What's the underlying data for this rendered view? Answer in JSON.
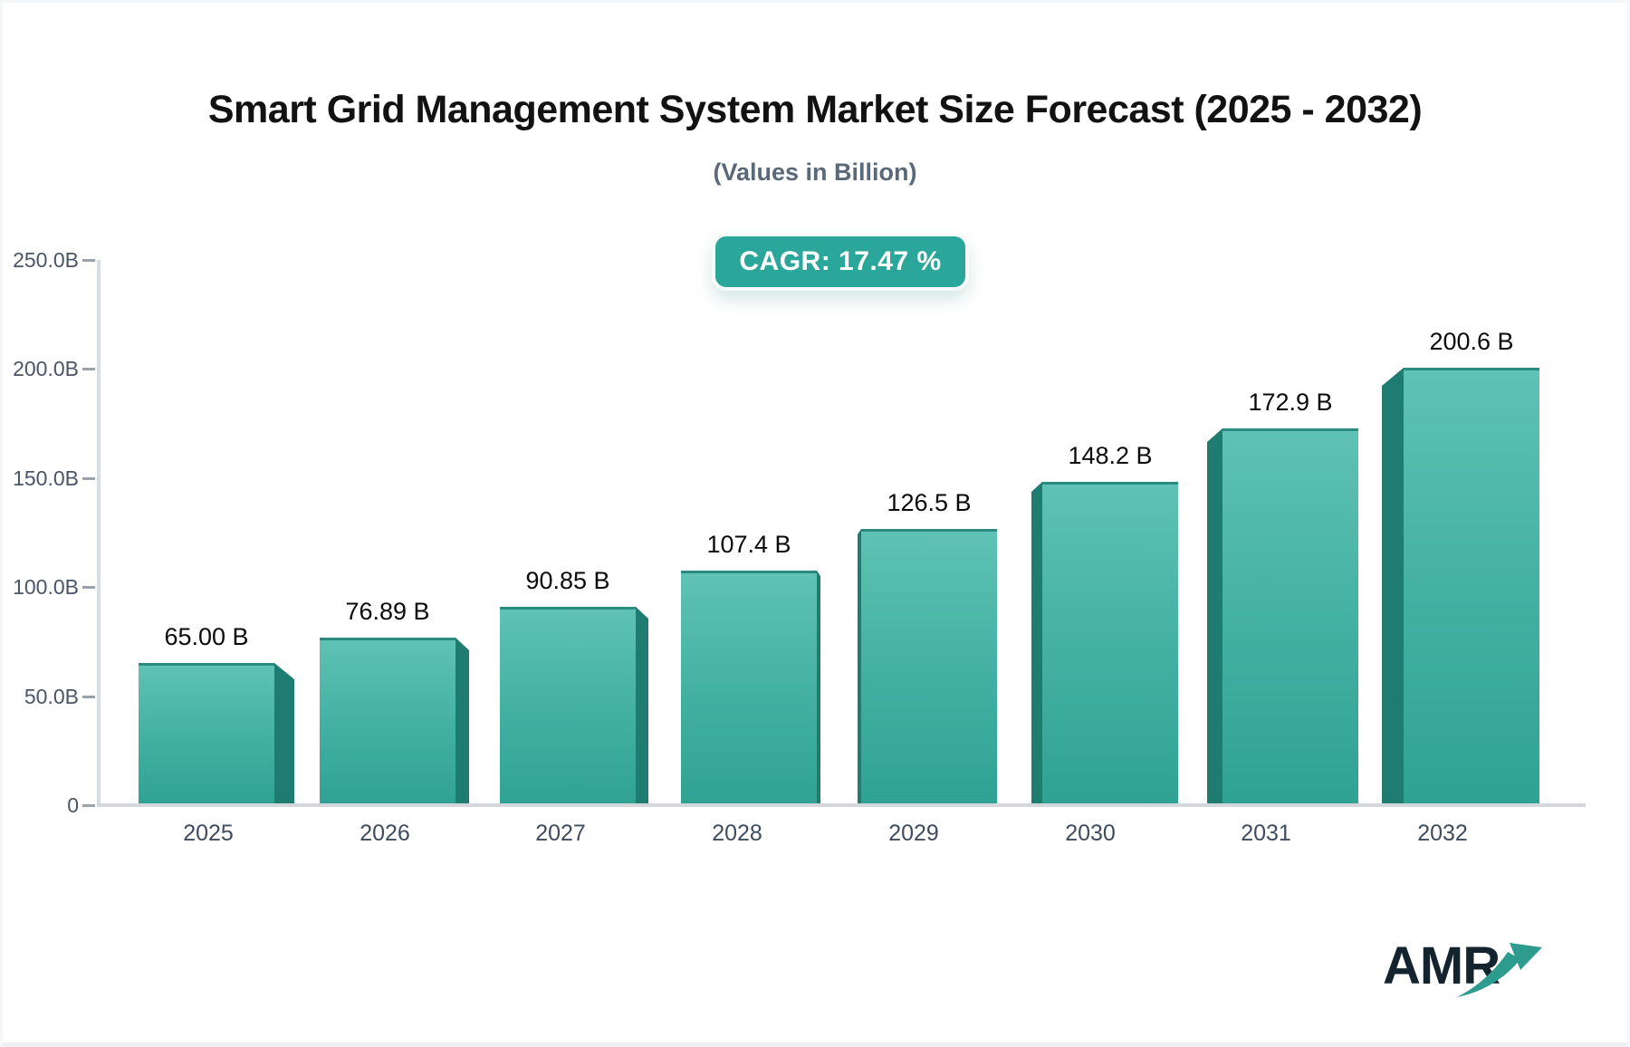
{
  "header": {
    "title": "Smart Grid Management System Market Size Forecast (2025 - 2032)",
    "subtitle": "(Values in Billion)",
    "cagr_label": "CAGR: 17.47 %"
  },
  "chart_data": {
    "type": "bar",
    "title": "Smart Grid Management System Market Size Forecast (2025 - 2032)",
    "subtitle": "(Values in Billion)",
    "cagr_percent": 17.47,
    "categories": [
      "2025",
      "2026",
      "2027",
      "2028",
      "2029",
      "2030",
      "2031",
      "2032"
    ],
    "values": [
      65.0,
      76.89,
      90.85,
      107.4,
      126.5,
      148.2,
      172.9,
      200.6
    ],
    "value_labels": [
      "65.00 B",
      "76.89 B",
      "90.85 B",
      "107.4 B",
      "126.5 B",
      "148.2 B",
      "172.9 B",
      "200.6 B"
    ],
    "y_tick_labels": [
      "250.0B",
      "200.0B",
      "150.0B",
      "100.0B",
      "50.0B",
      "0"
    ],
    "y_tick_values": [
      250,
      200,
      150,
      100,
      50,
      0
    ],
    "ylim": [
      0,
      250
    ],
    "grid": "off",
    "legend": "none",
    "colors": {
      "bar_top": "#5fc2b4",
      "bar_bottom": "#2fa294",
      "bar_side": "#1e7c70",
      "bar_top_edge": "#2b8b7e",
      "accent_badge": "#2ba69a",
      "axis_line": "#d6dadf",
      "y_label_text": "#4a5568",
      "x_label_text": "#3e4c5e"
    }
  },
  "logo": {
    "text": "AMR"
  }
}
